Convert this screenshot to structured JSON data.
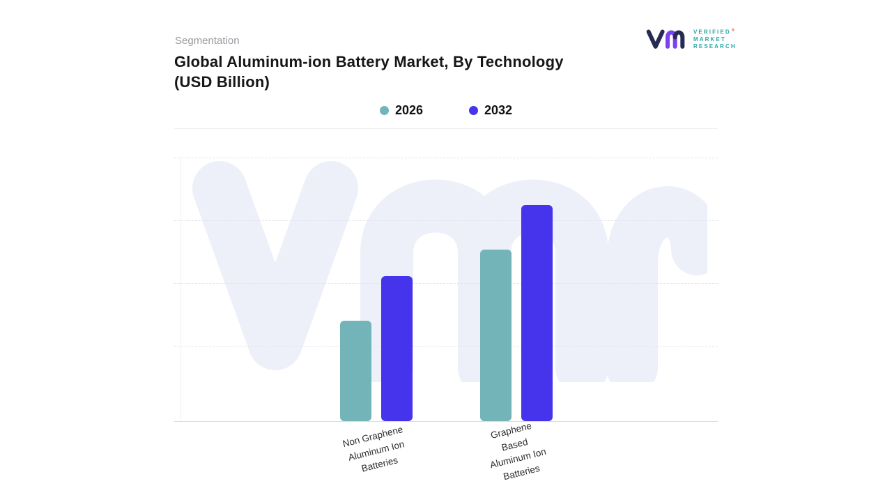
{
  "header": {
    "eyebrow": "Segmentation",
    "title_line1": "Global Aluminum-ion Battery Market, By Technology",
    "title_line2": "(USD Billion)"
  },
  "brand": {
    "name_lines": [
      "VERIFIED",
      "MARKET",
      "RESEARCH"
    ],
    "registered_mark": "®",
    "colors": {
      "monogram_navy": "#272b54",
      "monogram_purple": "#7c41f5",
      "wordmark_teal": "#2aa7a7",
      "registered_orange": "#e2574b"
    }
  },
  "watermark": {
    "name": "vmr-monogram",
    "color": "#eef0f9"
  },
  "chart_data": {
    "type": "bar",
    "title": "Global Aluminum-ion Battery Market, By Technology (USD Billion)",
    "unit": "USD Billion",
    "categories": [
      "Non Graphene Aluminum Ion Batteries",
      "Graphene Based Aluminum Ion Batteries"
    ],
    "category_label_lines": [
      [
        "Non Graphene",
        "Aluminum Ion",
        "Batteries"
      ],
      [
        "Graphene",
        "Based",
        "Aluminum Ion",
        "Batteries"
      ]
    ],
    "series": [
      {
        "name": "2026",
        "color": "#72b4b7",
        "values": [
          0.38,
          0.65
        ]
      },
      {
        "name": "2032",
        "color": "#4634ec",
        "values": [
          0.55,
          0.82
        ]
      }
    ],
    "ylim": [
      0,
      1
    ],
    "y_axis_labels_shown": false,
    "value_labels_shown": false,
    "gridlines": "dashed-horizontal",
    "legend_position": "top-center"
  }
}
